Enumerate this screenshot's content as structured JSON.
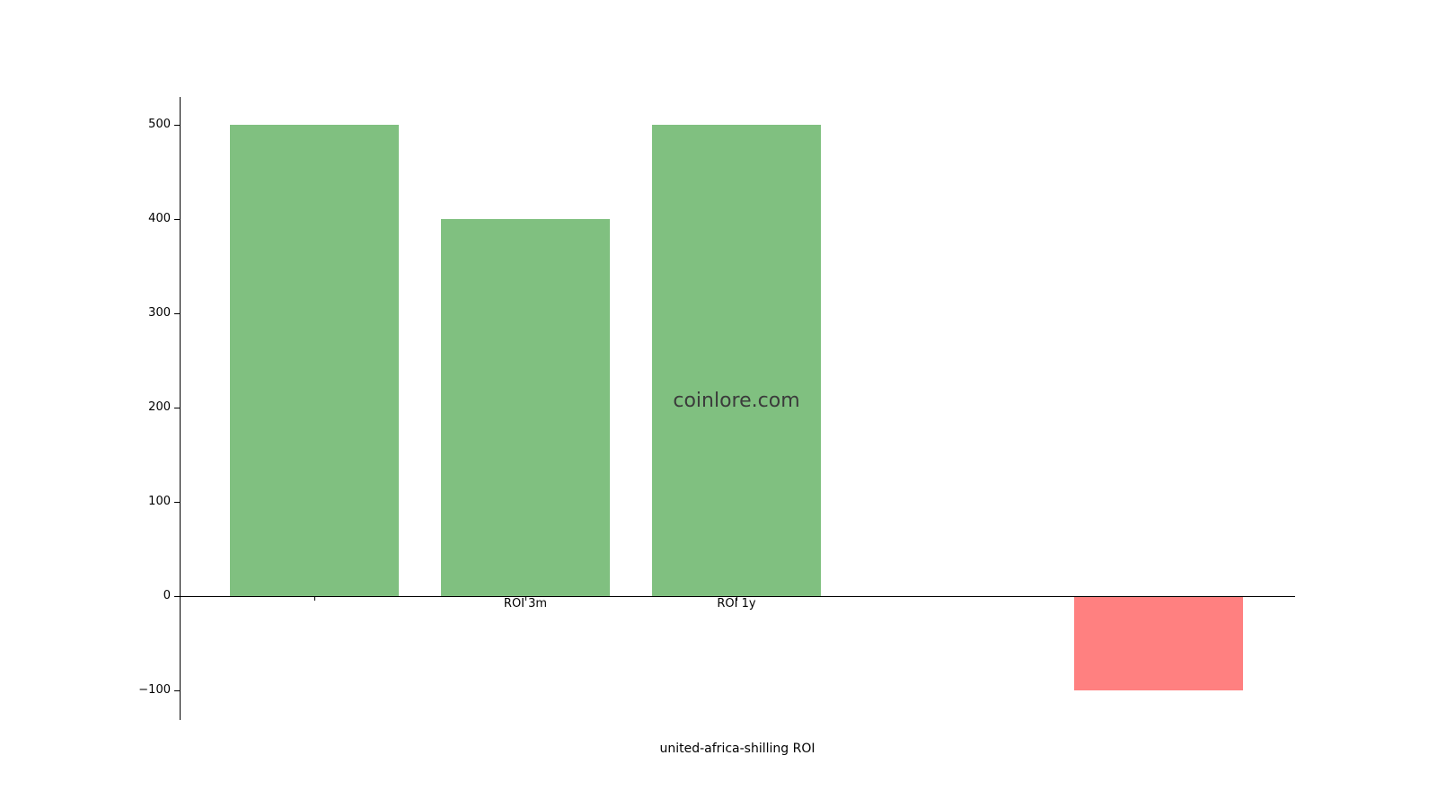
{
  "page": {
    "background_color": "#ffffff"
  },
  "chart_data": {
    "type": "bar",
    "title": "united-africa-shilling ROI",
    "watermark": "coinlore.com",
    "categories": [
      "",
      "ROI 3m",
      "ROI 1y",
      ""
    ],
    "values": [
      500,
      400,
      500,
      -100
    ],
    "bar_colors": [
      "#80c080",
      "#80c080",
      "#80c080",
      "#ff8080"
    ],
    "positive_color": "#80c080",
    "negative_color": "#ff8080",
    "xlabel": "",
    "ylabel": "",
    "y_ticks": [
      500,
      400,
      300,
      200,
      100,
      0,
      -100
    ],
    "y_tick_labels": [
      "500",
      "400",
      "300",
      "200",
      "100",
      "0",
      "−100"
    ],
    "x_tick_labels": [
      {
        "bar_index": 0,
        "label": ""
      },
      {
        "bar_index": 1,
        "label": "ROI 3m"
      },
      {
        "bar_index": 2,
        "label": "ROI 1y"
      }
    ],
    "ylim": [
      -131,
      529
    ],
    "grid": false,
    "legend": null,
    "axis_color": "#000000",
    "text_color": "#000000",
    "watermark_color": "#3b3b3b"
  }
}
